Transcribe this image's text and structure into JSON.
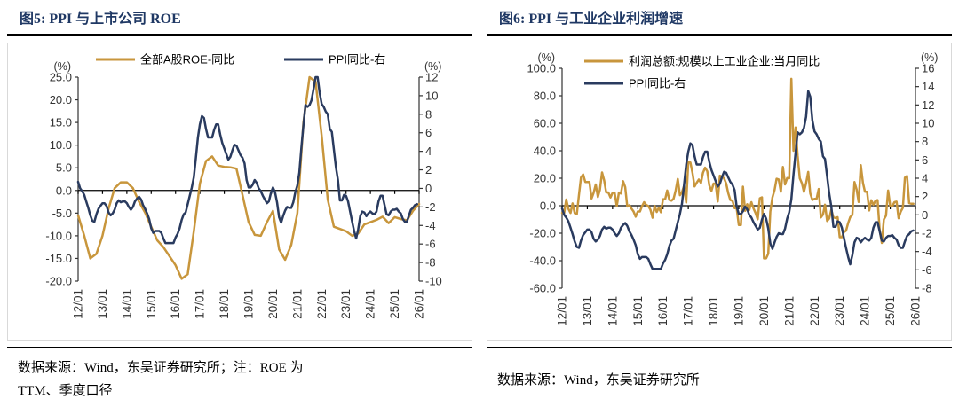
{
  "colors": {
    "gold": "#C8963C",
    "navy": "#2A3B5F",
    "title_navy": "#1F3864",
    "rule_black": "#000000",
    "axis_text": "#333333",
    "chart_border": "#D9D9D9"
  },
  "panels": [
    {
      "title": "图5:  PPI 与上市公司 ROE",
      "source_lines": [
        "数据来源：Wind，东吴证券研究所；注：ROE 为",
        "TTM、季度口径"
      ]
    },
    {
      "title": "图6:  PPI 与工业企业利润增速",
      "source_lines": [
        "数据来源：Wind，东吴证券研究所"
      ]
    }
  ],
  "shared_series": {
    "ppi_monthly": [
      0.7,
      0.0,
      -0.3,
      -0.7,
      -1.4,
      -2.1,
      -2.9,
      -3.5,
      -3.6,
      -2.8,
      -2.2,
      -1.9,
      -1.6,
      -1.6,
      -1.9,
      -2.6,
      -2.9,
      -2.7,
      -2.3,
      -1.6,
      -1.3,
      -1.5,
      -1.4,
      -1.4,
      -1.6,
      -2.0,
      -2.3,
      -2.0,
      -1.4,
      -1.1,
      -0.9,
      -1.2,
      -1.8,
      -2.2,
      -2.7,
      -3.3,
      -4.3,
      -4.8,
      -4.6,
      -4.6,
      -4.6,
      -4.8,
      -5.4,
      -5.9,
      -5.9,
      -5.9,
      -5.9,
      -5.9,
      -5.3,
      -4.9,
      -4.3,
      -3.4,
      -2.8,
      -2.6,
      -1.7,
      -0.8,
      0.1,
      1.2,
      3.3,
      5.5,
      6.9,
      7.8,
      7.6,
      6.4,
      5.5,
      5.5,
      5.5,
      6.3,
      6.9,
      6.9,
      5.8,
      4.9,
      4.3,
      3.7,
      3.1,
      3.4,
      4.1,
      4.7,
      4.6,
      4.1,
      3.6,
      3.3,
      2.7,
      0.9,
      0.1,
      0.1,
      0.4,
      0.9,
      0.6,
      0.0,
      -0.3,
      -0.8,
      -1.2,
      -1.6,
      -1.4,
      -0.5,
      0.1,
      -0.4,
      -1.5,
      -3.1,
      -3.7,
      -3.0,
      -2.4,
      -2.0,
      -2.1,
      -2.1,
      -1.5,
      -0.4,
      0.3,
      1.7,
      4.4,
      6.8,
      9.0,
      8.8,
      9.0,
      9.5,
      10.7,
      13.5,
      12.9,
      10.3,
      9.1,
      8.8,
      8.3,
      8.0,
      6.4,
      6.1,
      4.2,
      2.3,
      0.9,
      -1.3,
      -1.3,
      -0.7,
      -0.8,
      -1.4,
      -2.5,
      -3.6,
      -4.6,
      -5.4,
      -4.4,
      -3.0,
      -2.5,
      -2.6,
      -3.0,
      -2.7,
      -2.5,
      -2.7,
      -2.8,
      -2.5,
      -1.4,
      -0.8,
      -0.8,
      -1.8,
      -2.8,
      -2.9,
      -2.5,
      -2.3,
      -2.3,
      -2.2,
      -2.5,
      -2.7,
      -3.3,
      -3.6,
      -3.6,
      -2.9,
      -2.3,
      -2.1,
      -1.8,
      -1.7
    ]
  },
  "chart_data": [
    {
      "type": "line",
      "title": "图5: PPI 与上市公司 ROE",
      "x_span_years": 14,
      "x_tick_labels": [
        "12/01",
        "13/01",
        "14/01",
        "15/01",
        "16/01",
        "17/01",
        "18/01",
        "19/01",
        "20/01",
        "21/01",
        "22/01",
        "23/01",
        "24/01",
        "25/01",
        "26/01"
      ],
      "left_axis": {
        "unit": "(%)",
        "min": -20,
        "max": 25,
        "step": 5,
        "ticks": [
          "25.0",
          "20.0",
          "15.0",
          "10.0",
          "5.0",
          "0.0",
          "-5.0",
          "-10.0",
          "-15.0",
          "-20.0"
        ]
      },
      "right_axis": {
        "unit": "(%)",
        "min": -10,
        "max": 12,
        "step": 2,
        "ticks": [
          "12",
          "10",
          "8",
          "6",
          "4",
          "2",
          "0",
          "-2",
          "-4",
          "-6",
          "-8",
          "-10"
        ]
      },
      "series": [
        {
          "name": "全部A股ROE-同比",
          "axis": "left",
          "color_key": "gold",
          "start": "2012Q1",
          "freq": "quarterly",
          "step_years": 0.25,
          "values": [
            -5.5,
            -10,
            -15,
            -14,
            -10,
            -4,
            0.5,
            1.8,
            1.8,
            0.5,
            -2.5,
            -4.9,
            -8,
            -11,
            -12.5,
            -14.5,
            -16.5,
            -19.5,
            -18.5,
            -9,
            1.5,
            6.5,
            7.5,
            5.5,
            5.2,
            5.1,
            4.8,
            -1,
            -7,
            -9.8,
            -10,
            -7,
            -4.5,
            -13,
            -15.3,
            -12,
            -5,
            15,
            25,
            24,
            12,
            -2,
            -8,
            -8.5,
            -9,
            -10,
            -9.5,
            -7.5,
            -7,
            -6.5,
            -5.8,
            -7.2,
            -5.9,
            -6.3,
            -6.6,
            -4.5,
            -3
          ]
        },
        {
          "name": "PPI同比-右",
          "axis": "right",
          "color_key": "navy",
          "start": "2012-01",
          "freq": "monthly",
          "step_years": 0.08333,
          "values_ref": "shared_series.ppi_monthly"
        }
      ],
      "legend_labels": [
        "全部A股ROE-同比",
        "PPI同比-右"
      ]
    },
    {
      "type": "line",
      "title": "图6: PPI 与工业企业利润增速",
      "x_span_years": 14,
      "x_tick_labels": [
        "12/01",
        "13/01",
        "14/01",
        "15/01",
        "16/01",
        "17/01",
        "18/01",
        "19/01",
        "20/01",
        "21/01",
        "22/01",
        "23/01",
        "24/01",
        "25/01",
        "26/01"
      ],
      "left_axis": {
        "unit": "(%)",
        "min": -60,
        "max": 100,
        "step": 20,
        "ticks": [
          "100.0",
          "80.0",
          "60.0",
          "40.0",
          "20.0",
          "0.0",
          "-20.0",
          "-40.0",
          "-60.0"
        ]
      },
      "right_axis": {
        "unit": "(%)",
        "min": -8,
        "max": 16,
        "step": 2,
        "ticks": [
          "16",
          "14",
          "12",
          "10",
          "8",
          "6",
          "4",
          "2",
          "0",
          "-2",
          "-4",
          "-6",
          "-8"
        ]
      },
      "series": [
        {
          "name": "利润总额:规模以上工业企业:当月同比",
          "axis": "left",
          "color_key": "gold",
          "start": "2012-01",
          "freq": "monthly",
          "step_years": 0.08333,
          "values": [
            -5.2,
            -5.2,
            4.5,
            -2.2,
            -5.3,
            1.7,
            -5.4,
            -6.2,
            7.8,
            20.5,
            22.8,
            17.3,
            17.2,
            17.2,
            5.3,
            9.3,
            15.5,
            6.3,
            11.6,
            24.2,
            18.4,
            9.7,
            9.7,
            6.0,
            9.4,
            9.4,
            -0.4,
            9.6,
            8.9,
            17.9,
            13.5,
            -0.6,
            0.4,
            -2.1,
            -4.2,
            -8.0,
            -4.2,
            -4.2,
            -0.4,
            2.6,
            0.6,
            -0.3,
            -2.9,
            -8.8,
            -0.1,
            -4.6,
            -1.4,
            -4.7,
            4.8,
            4.8,
            11.1,
            4.2,
            3.7,
            5.1,
            11.0,
            19.5,
            7.7,
            9.8,
            14.5,
            2.3,
            31.5,
            31.5,
            23.8,
            14.0,
            16.7,
            19.1,
            16.5,
            24.0,
            27.7,
            25.1,
            14.9,
            10.8,
            16.1,
            16.1,
            3.1,
            21.9,
            21.1,
            20.0,
            16.2,
            9.2,
            4.1,
            3.6,
            -1.8,
            -1.9,
            -14.0,
            -14.0,
            13.9,
            -3.7,
            1.1,
            -3.1,
            2.6,
            -2.0,
            -5.3,
            -9.9,
            5.4,
            6.1,
            -38.3,
            -38.3,
            -34.9,
            -4.3,
            6.0,
            11.5,
            19.6,
            19.1,
            10.1,
            28.2,
            15.5,
            20.1,
            20.0,
            92.3,
            40.0,
            57.0,
            36.4,
            20.0,
            16.4,
            10.1,
            16.3,
            24.6,
            9.0,
            4.2,
            5.0,
            5.0,
            12.2,
            -8.5,
            -6.5,
            0.8,
            -11.1,
            -9.2,
            -3.0,
            -8.6,
            -8.9,
            -8.3,
            -22.9,
            -22.9,
            -19.2,
            -18.2,
            -12.6,
            -8.3,
            -6.7,
            17.2,
            11.9,
            2.7,
            29.5,
            16.8,
            10.2,
            10.2,
            -3.5,
            4.0,
            0.7,
            3.6,
            4.1,
            -17.8,
            -27.1,
            -10.0,
            -7.3,
            11.0,
            -0.3,
            -0.3,
            2.6,
            3.0,
            -9.1,
            -4.3,
            -1.5,
            20.4,
            21.6,
            1.9,
            1.5,
            1.5
          ]
        },
        {
          "name": "PPI同比-右",
          "axis": "right",
          "color_key": "navy",
          "start": "2012-01",
          "freq": "monthly",
          "step_years": 0.08333,
          "values_ref": "shared_series.ppi_monthly"
        }
      ],
      "legend_labels": [
        "利润总额:规模以上工业企业:当月同比",
        "PPI同比-右"
      ]
    }
  ]
}
